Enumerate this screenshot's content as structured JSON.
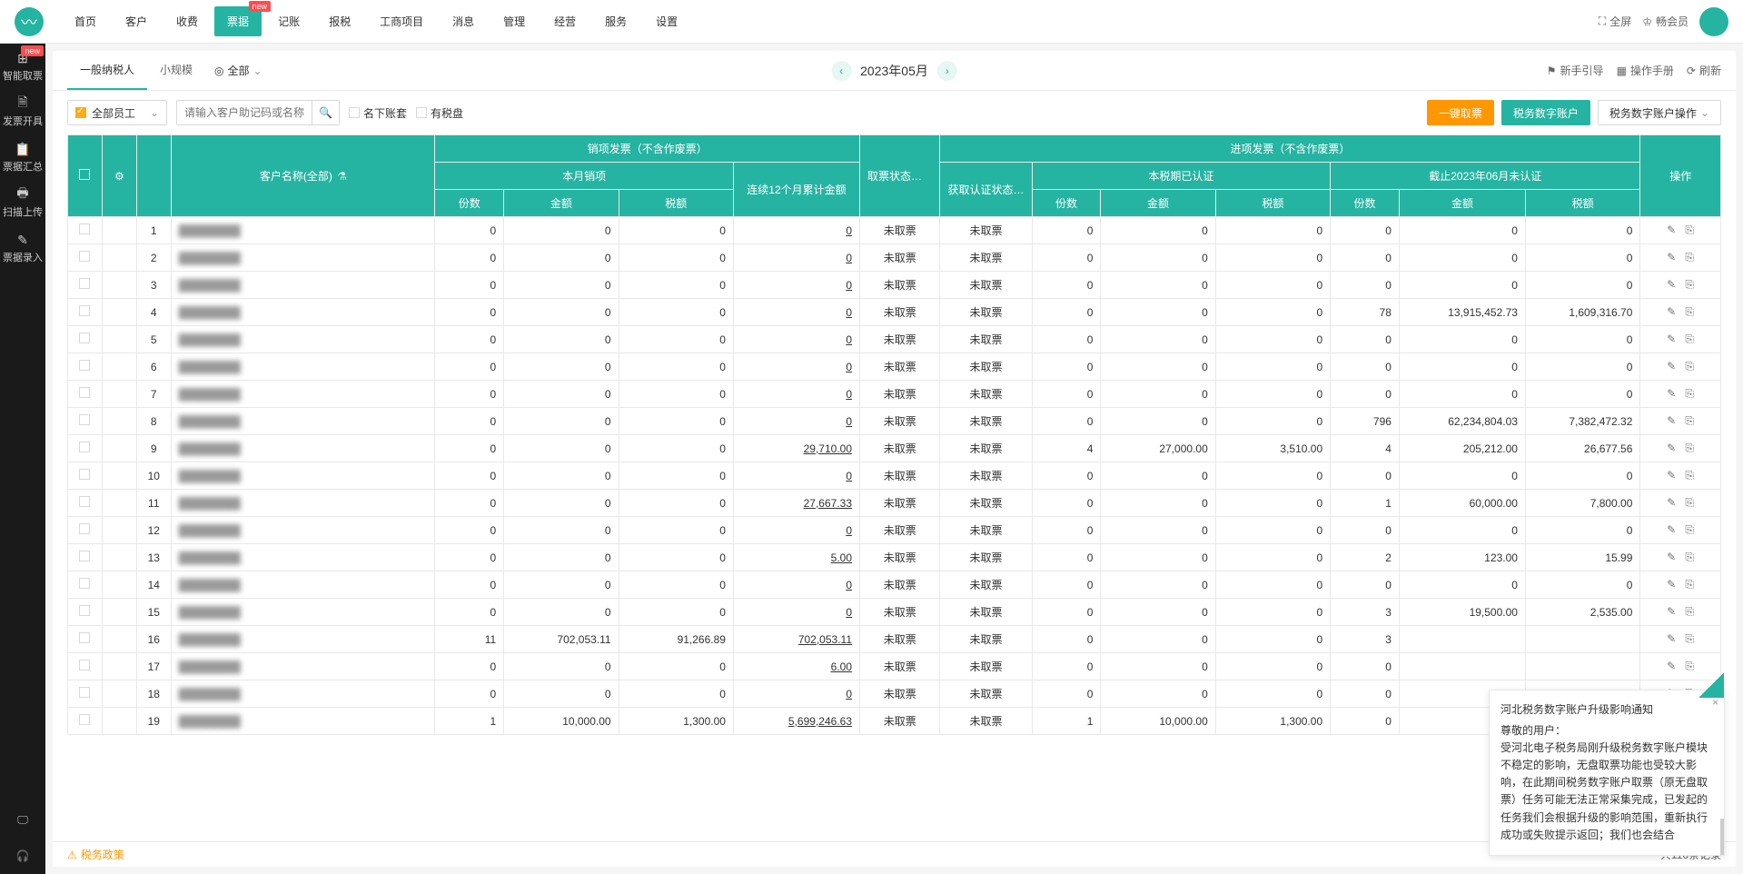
{
  "colors": {
    "primary": "#26b4a2",
    "orange": "#ff9800",
    "danger": "#ff4d4f",
    "border": "#e8e8e8",
    "sidebar_bg": "#1a1a1a"
  },
  "topnav": {
    "items": [
      {
        "label": "首页"
      },
      {
        "label": "客户"
      },
      {
        "label": "收费"
      },
      {
        "label": "票据",
        "active": true,
        "new": true
      },
      {
        "label": "记账"
      },
      {
        "label": "报税"
      },
      {
        "label": "工商项目"
      },
      {
        "label": "消息"
      },
      {
        "label": "管理"
      },
      {
        "label": "经营"
      },
      {
        "label": "服务"
      },
      {
        "label": "设置"
      }
    ],
    "right": {
      "fullscreen": "全屏",
      "member": "畅会员"
    }
  },
  "sidebar": {
    "items": [
      {
        "label": "智能取票",
        "icon": "⊞",
        "new": true
      },
      {
        "label": "发票开具",
        "icon": "🗎"
      },
      {
        "label": "票据汇总",
        "icon": "📋"
      },
      {
        "label": "扫描上传",
        "icon": "🖶"
      },
      {
        "label": "票据录入",
        "icon": "✎"
      }
    ]
  },
  "tabs": {
    "items": [
      {
        "label": "一般纳税人",
        "active": true
      },
      {
        "label": "小规模"
      }
    ],
    "scope": "全部",
    "date": "2023年05月",
    "right": {
      "guide": "新手引导",
      "manual": "操作手册",
      "refresh": "刷新"
    }
  },
  "filters": {
    "employee": "全部员工",
    "search_placeholder": "请输入客户助记码或名称",
    "under_account": "名下账套",
    "has_disk": "有税盘",
    "btn_fetch": "一键取票",
    "btn_tax_account": "税务数字账户",
    "btn_tax_ops": "税务数字账户操作"
  },
  "table": {
    "header": {
      "sales_group": "销项发票（不含作废票）",
      "month_sales": "本月销项",
      "cumulative": "连续12个月累计金额",
      "fetch_status": "取票状态（全部）",
      "purchase_group": "进项发票（不含作废票）",
      "certified": "本税期已认证",
      "uncertified": "截止2023年06月未认证",
      "operation": "操作",
      "customer": "客户名称(全部)",
      "count": "份数",
      "amount": "金额",
      "tax": "税额",
      "cert_status": "获取认证状态（全部）"
    },
    "rows": [
      {
        "idx": 1,
        "s_cnt": "0",
        "s_amt": "0",
        "s_tax": "0",
        "cum": "0",
        "fs": "未取票",
        "cs": "未取票",
        "c_cnt": "0",
        "c_amt": "0",
        "c_tax": "0",
        "u_cnt": "0",
        "u_amt": "0",
        "u_tax": "0"
      },
      {
        "idx": 2,
        "s_cnt": "0",
        "s_amt": "0",
        "s_tax": "0",
        "cum": "0",
        "fs": "未取票",
        "cs": "未取票",
        "c_cnt": "0",
        "c_amt": "0",
        "c_tax": "0",
        "u_cnt": "0",
        "u_amt": "0",
        "u_tax": "0"
      },
      {
        "idx": 3,
        "s_cnt": "0",
        "s_amt": "0",
        "s_tax": "0",
        "cum": "0",
        "fs": "未取票",
        "cs": "未取票",
        "c_cnt": "0",
        "c_amt": "0",
        "c_tax": "0",
        "u_cnt": "0",
        "u_amt": "0",
        "u_tax": "0"
      },
      {
        "idx": 4,
        "s_cnt": "0",
        "s_amt": "0",
        "s_tax": "0",
        "cum": "0",
        "fs": "未取票",
        "cs": "未取票",
        "c_cnt": "0",
        "c_amt": "0",
        "c_tax": "0",
        "u_cnt": "78",
        "u_amt": "13,915,452.73",
        "u_tax": "1,609,316.70"
      },
      {
        "idx": 5,
        "s_cnt": "0",
        "s_amt": "0",
        "s_tax": "0",
        "cum": "0",
        "fs": "未取票",
        "cs": "未取票",
        "c_cnt": "0",
        "c_amt": "0",
        "c_tax": "0",
        "u_cnt": "0",
        "u_amt": "0",
        "u_tax": "0"
      },
      {
        "idx": 6,
        "s_cnt": "0",
        "s_amt": "0",
        "s_tax": "0",
        "cum": "0",
        "fs": "未取票",
        "cs": "未取票",
        "c_cnt": "0",
        "c_amt": "0",
        "c_tax": "0",
        "u_cnt": "0",
        "u_amt": "0",
        "u_tax": "0"
      },
      {
        "idx": 7,
        "s_cnt": "0",
        "s_amt": "0",
        "s_tax": "0",
        "cum": "0",
        "fs": "未取票",
        "cs": "未取票",
        "c_cnt": "0",
        "c_amt": "0",
        "c_tax": "0",
        "u_cnt": "0",
        "u_amt": "0",
        "u_tax": "0"
      },
      {
        "idx": 8,
        "s_cnt": "0",
        "s_amt": "0",
        "s_tax": "0",
        "cum": "0",
        "fs": "未取票",
        "cs": "未取票",
        "c_cnt": "0",
        "c_amt": "0",
        "c_tax": "0",
        "u_cnt": "796",
        "u_amt": "62,234,804.03",
        "u_tax": "7,382,472.32"
      },
      {
        "idx": 9,
        "s_cnt": "0",
        "s_amt": "0",
        "s_tax": "0",
        "cum": "29,710.00",
        "fs": "未取票",
        "cs": "未取票",
        "c_cnt": "4",
        "c_amt": "27,000.00",
        "c_tax": "3,510.00",
        "u_cnt": "4",
        "u_amt": "205,212.00",
        "u_tax": "26,677.56"
      },
      {
        "idx": 10,
        "s_cnt": "0",
        "s_amt": "0",
        "s_tax": "0",
        "cum": "0",
        "fs": "未取票",
        "cs": "未取票",
        "c_cnt": "0",
        "c_amt": "0",
        "c_tax": "0",
        "u_cnt": "0",
        "u_amt": "0",
        "u_tax": "0"
      },
      {
        "idx": 11,
        "s_cnt": "0",
        "s_amt": "0",
        "s_tax": "0",
        "cum": "27,667.33",
        "fs": "未取票",
        "cs": "未取票",
        "c_cnt": "0",
        "c_amt": "0",
        "c_tax": "0",
        "u_cnt": "1",
        "u_amt": "60,000.00",
        "u_tax": "7,800.00"
      },
      {
        "idx": 12,
        "s_cnt": "0",
        "s_amt": "0",
        "s_tax": "0",
        "cum": "0",
        "fs": "未取票",
        "cs": "未取票",
        "c_cnt": "0",
        "c_amt": "0",
        "c_tax": "0",
        "u_cnt": "0",
        "u_amt": "0",
        "u_tax": "0"
      },
      {
        "idx": 13,
        "s_cnt": "0",
        "s_amt": "0",
        "s_tax": "0",
        "cum": "5.00",
        "fs": "未取票",
        "cs": "未取票",
        "c_cnt": "0",
        "c_amt": "0",
        "c_tax": "0",
        "u_cnt": "2",
        "u_amt": "123.00",
        "u_tax": "15.99"
      },
      {
        "idx": 14,
        "s_cnt": "0",
        "s_amt": "0",
        "s_tax": "0",
        "cum": "0",
        "fs": "未取票",
        "cs": "未取票",
        "c_cnt": "0",
        "c_amt": "0",
        "c_tax": "0",
        "u_cnt": "0",
        "u_amt": "0",
        "u_tax": "0"
      },
      {
        "idx": 15,
        "s_cnt": "0",
        "s_amt": "0",
        "s_tax": "0",
        "cum": "0",
        "fs": "未取票",
        "cs": "未取票",
        "c_cnt": "0",
        "c_amt": "0",
        "c_tax": "0",
        "u_cnt": "3",
        "u_amt": "19,500.00",
        "u_tax": "2,535.00"
      },
      {
        "idx": 16,
        "s_cnt": "11",
        "s_amt": "702,053.11",
        "s_tax": "91,266.89",
        "cum": "702,053.11",
        "fs": "未取票",
        "cs": "未取票",
        "c_cnt": "0",
        "c_amt": "0",
        "c_tax": "0",
        "u_cnt": "3",
        "u_amt": "",
        "u_tax": ""
      },
      {
        "idx": 17,
        "s_cnt": "0",
        "s_amt": "0",
        "s_tax": "0",
        "cum": "6.00",
        "fs": "未取票",
        "cs": "未取票",
        "c_cnt": "0",
        "c_amt": "0",
        "c_tax": "0",
        "u_cnt": "0",
        "u_amt": "",
        "u_tax": ""
      },
      {
        "idx": 18,
        "s_cnt": "0",
        "s_amt": "0",
        "s_tax": "0",
        "cum": "0",
        "fs": "未取票",
        "cs": "未取票",
        "c_cnt": "0",
        "c_amt": "0",
        "c_tax": "0",
        "u_cnt": "0",
        "u_amt": "",
        "u_tax": ""
      },
      {
        "idx": 19,
        "s_cnt": "1",
        "s_amt": "10,000.00",
        "s_tax": "1,300.00",
        "cum": "5,699,246.63",
        "fs": "未取票",
        "cs": "未取票",
        "c_cnt": "1",
        "c_amt": "10,000.00",
        "c_tax": "1,300.00",
        "u_cnt": "0",
        "u_amt": "",
        "u_tax": ""
      }
    ]
  },
  "footer": {
    "policy": "税务政策",
    "total": "共116条记录"
  },
  "notify": {
    "title": "河北税务数字账户升级影响通知",
    "greeting": "尊敬的用户：",
    "body": "受河北电子税务局刚升级税务数字账户模块不稳定的影响，无盘取票功能也受较大影响，在此期间税务数字账户取票（原无盘取票）任务可能无法正常采集完成，已发起的任务我们会根据升级的影响范围，重新执行成功或失败提示返回；我们也会结合"
  }
}
